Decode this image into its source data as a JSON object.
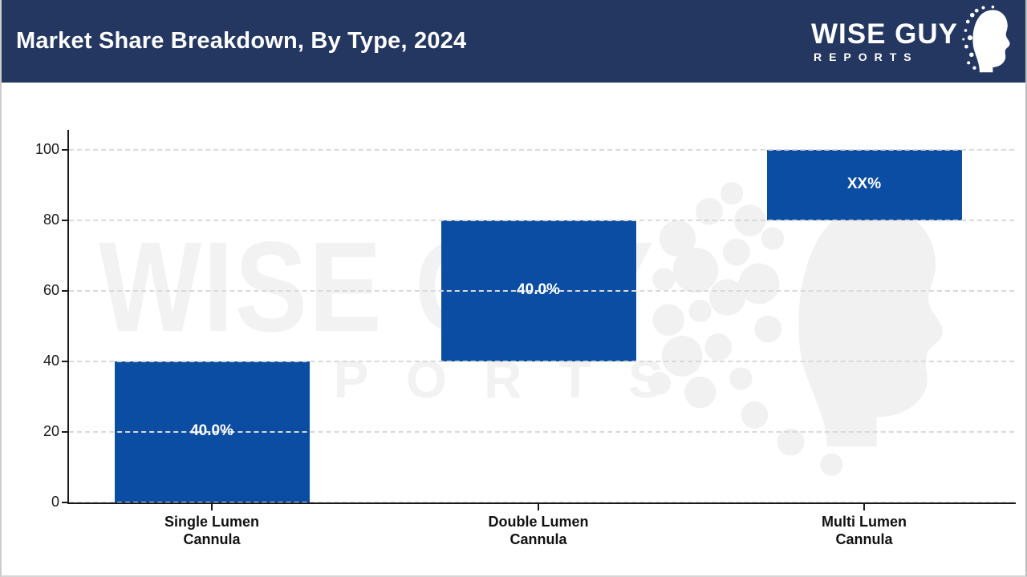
{
  "header": {
    "title": "Market Share Breakdown, By Type, 2024",
    "logo": {
      "line1": "WISE GUY",
      "line2": "REPORTS"
    }
  },
  "watermark": {
    "line1": "WISE GUY",
    "line2": "REPORTS"
  },
  "colors": {
    "header_bg": "#233761",
    "bar": "#0b4da2",
    "bar_label_text": "#ffffff",
    "gridline": "#d9d9d9",
    "axis": "#1a1a1a"
  },
  "chart_data": {
    "type": "bar",
    "subtype": "floating cumulative segments (waterfall-style share breakdown)",
    "title": "Market Share Breakdown, By Type, 2024",
    "categories": [
      "Single Lumen Cannula",
      "Double Lumen Cannula",
      "Multi Lumen Cannula"
    ],
    "category_label_lines": [
      [
        "Single Lumen",
        "Cannula"
      ],
      [
        "Double Lumen",
        "Cannula"
      ],
      [
        "Multi Lumen",
        "Cannula"
      ]
    ],
    "segments": [
      {
        "category": "Single Lumen Cannula",
        "start": 0,
        "end": 40,
        "label": "40.0%"
      },
      {
        "category": "Double Lumen Cannula",
        "start": 40,
        "end": 80,
        "label": "40.0%"
      },
      {
        "category": "Multi Lumen Cannula",
        "start": 80,
        "end": 100,
        "label": "XX%"
      }
    ],
    "xlabel": "",
    "ylabel": "",
    "ylim": [
      0,
      100
    ],
    "yticks": [
      0,
      20,
      40,
      60,
      80,
      100
    ],
    "grid": "horizontal dashed, drawn over bars",
    "legend": "none",
    "bar_color": "#0b4da2"
  }
}
